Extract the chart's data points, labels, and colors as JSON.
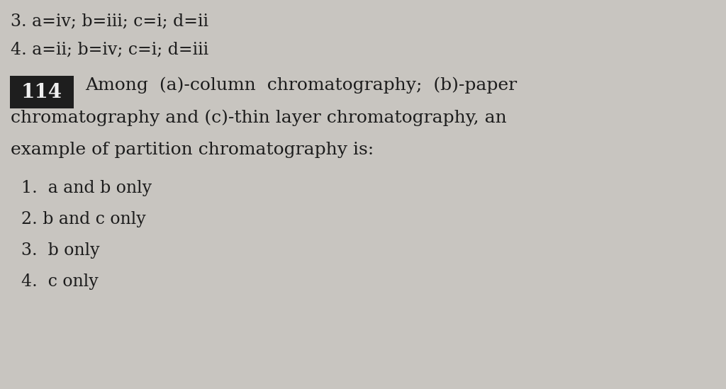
{
  "background_color": "#c8c5c0",
  "text_color": "#1c1c1c",
  "line1": "3. a=iv; b=iii; c=i; d=ii",
  "line2": "4. a=ii; b=iv; c=i; d=iii",
  "question_number": "114",
  "question_box_color": "#1e1e1e",
  "question_box_text_color": "#f0f0f0",
  "q_line1": "Among  (a)-column  chromatography;  (b)-paper",
  "q_line2": "chromatography and (c)-thin layer chromatography, an",
  "q_line3": "example of partition chromatography is:",
  "options": [
    "1.  a and b only",
    "2. b and c only",
    "3.  b only",
    "4.  c only"
  ],
  "font_size_top": 17,
  "font_size_q": 18,
  "font_size_opt": 17,
  "figwidth": 10.24,
  "figheight": 5.49,
  "dpi": 100
}
